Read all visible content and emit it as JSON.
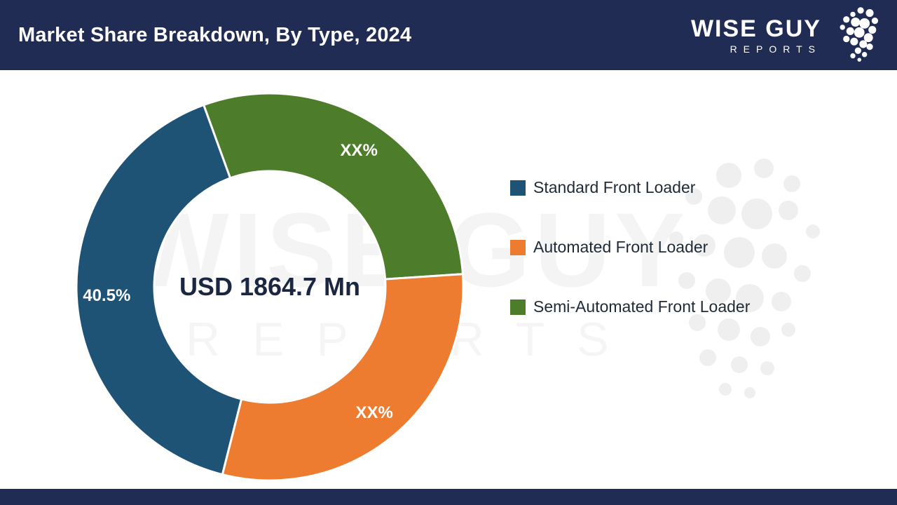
{
  "header": {
    "title": "Market Share Breakdown, By Type, 2024",
    "logo": {
      "line1": "WISE GUY",
      "line2": "REPORTS"
    }
  },
  "chart_data": {
    "type": "donut",
    "title": "Market Share Breakdown, By Type, 2024",
    "center_label": "USD 1864.7 Mn",
    "start_angle_deg": 340,
    "segments": [
      {
        "name": "Semi-Automated Front Loader",
        "label": "XX%",
        "value": 29.5,
        "color": "#4d7c2b"
      },
      {
        "name": "Automated Front Loader",
        "label": "XX%",
        "value": 30.0,
        "color": "#ee7c30"
      },
      {
        "name": "Standard Front Loader",
        "label": "40.5%",
        "value": 40.5,
        "color": "#1f5375"
      }
    ],
    "legend_position": "right"
  },
  "legend": {
    "items": [
      {
        "label": "Standard Front Loader",
        "color": "#1f5375"
      },
      {
        "label": "Automated Front Loader",
        "color": "#ee7c30"
      },
      {
        "label": "Semi-Automated Front Loader",
        "color": "#4d7c2b"
      }
    ]
  },
  "watermark": {
    "line1": "WISE GUY",
    "line2": "REPORTS"
  }
}
